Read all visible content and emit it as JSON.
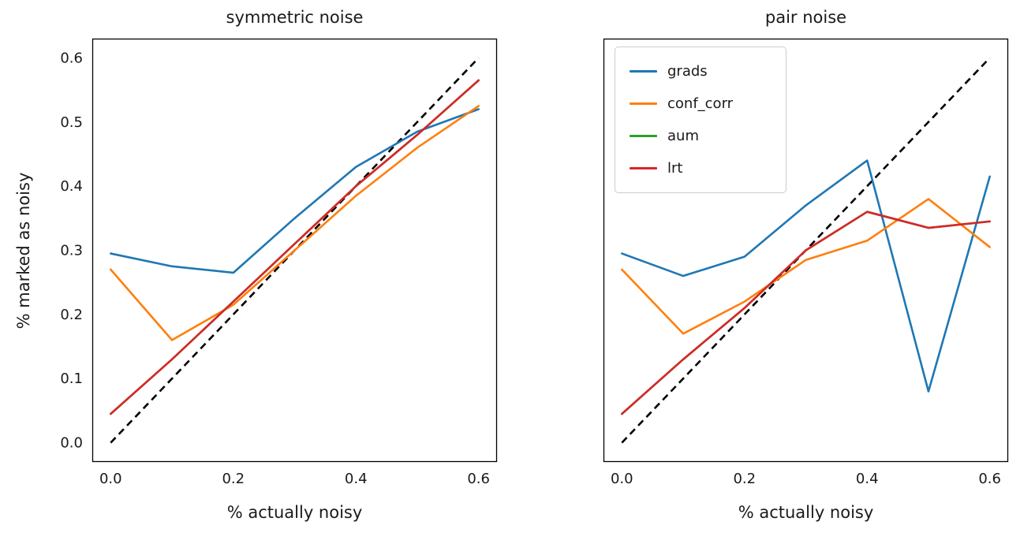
{
  "figure": {
    "background": "#ffffff",
    "text_color": "#1a1a1a",
    "spine_color": "#000000"
  },
  "chart_data": [
    {
      "type": "line",
      "title": "symmetric noise",
      "xlabel": "% actually noisy",
      "ylabel": "% marked as noisy",
      "xlim": [
        -0.03,
        0.63
      ],
      "ylim": [
        -0.03,
        0.63
      ],
      "x_ticks": [
        0.0,
        0.2,
        0.4,
        0.6
      ],
      "y_ticks": [
        0.0,
        0.1,
        0.2,
        0.3,
        0.4,
        0.5,
        0.6
      ],
      "show_y_ticklabels": true,
      "grid": false,
      "legend": false,
      "x": [
        0.0,
        0.1,
        0.2,
        0.3,
        0.4,
        0.5,
        0.6
      ],
      "reference_line": {
        "name": "identity",
        "style": "dashed",
        "color": "#000000",
        "x": [
          0.0,
          0.6
        ],
        "y": [
          0.0,
          0.6
        ]
      },
      "series": [
        {
          "name": "grads",
          "color": "#1f77b4",
          "values": [
            0.295,
            0.275,
            0.265,
            0.35,
            0.43,
            0.485,
            0.52
          ]
        },
        {
          "name": "conf_corr",
          "color": "#ff7f0e",
          "values": [
            0.27,
            0.16,
            0.215,
            0.3,
            0.385,
            0.46,
            0.525
          ]
        },
        {
          "name": "aum",
          "color": "#2ca02c",
          "values": [
            0.045,
            0.13,
            0.22,
            0.31,
            0.4,
            0.48,
            0.565
          ]
        },
        {
          "name": "lrt",
          "color": "#d62728",
          "values": [
            0.045,
            0.13,
            0.22,
            0.31,
            0.4,
            0.48,
            0.565
          ]
        }
      ]
    },
    {
      "type": "line",
      "title": "pair noise",
      "xlabel": "% actually noisy",
      "ylabel": "",
      "xlim": [
        -0.03,
        0.63
      ],
      "ylim": [
        -0.03,
        0.63
      ],
      "x_ticks": [
        0.0,
        0.2,
        0.4,
        0.6
      ],
      "y_ticks": [
        0.0,
        0.1,
        0.2,
        0.3,
        0.4,
        0.5,
        0.6
      ],
      "show_y_ticklabels": false,
      "grid": false,
      "legend": true,
      "x": [
        0.0,
        0.1,
        0.2,
        0.3,
        0.4,
        0.5,
        0.6
      ],
      "reference_line": {
        "name": "identity",
        "style": "dashed",
        "color": "#000000",
        "x": [
          0.0,
          0.6
        ],
        "y": [
          0.0,
          0.6
        ]
      },
      "series": [
        {
          "name": "grads",
          "color": "#1f77b4",
          "values": [
            0.295,
            0.26,
            0.29,
            0.37,
            0.44,
            0.08,
            0.415
          ]
        },
        {
          "name": "conf_corr",
          "color": "#ff7f0e",
          "values": [
            0.27,
            0.17,
            0.22,
            0.285,
            0.315,
            0.38,
            0.305
          ]
        },
        {
          "name": "aum",
          "color": "#2ca02c",
          "values": [
            0.045,
            0.13,
            0.21,
            0.3,
            0.36,
            0.335,
            0.345
          ]
        },
        {
          "name": "lrt",
          "color": "#d62728",
          "values": [
            0.045,
            0.13,
            0.21,
            0.3,
            0.36,
            0.335,
            0.345
          ]
        }
      ]
    }
  ]
}
